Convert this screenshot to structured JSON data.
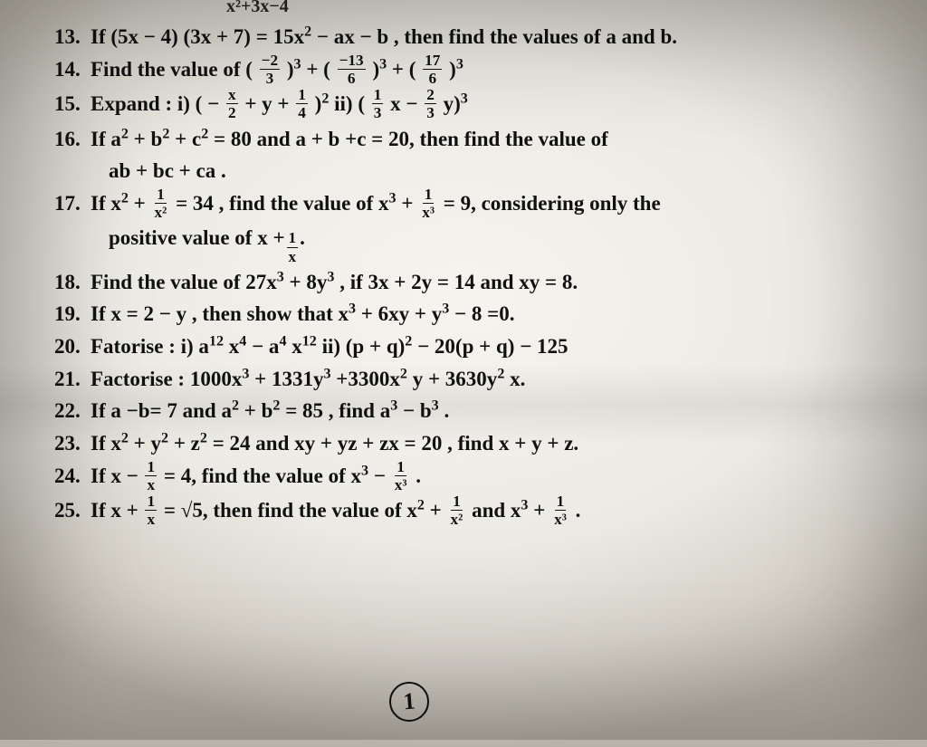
{
  "page": {
    "topfrag": "x²+3x−4",
    "footer_circled": "1"
  },
  "q13": {
    "num": "13.",
    "text_a": "If (5x − 4) (3x + 7) = 15x",
    "sup1": "2",
    "text_b": " − ax − b , then find the values of a and b."
  },
  "q14": {
    "num": "14.",
    "text_a": "Find the value of (",
    "f1t": "−2",
    "f1b": "3",
    "text_b": ")",
    "sup1": "3",
    "text_c": " + (",
    "f2t": "−13",
    "f2b": "6",
    "text_d": ")",
    "sup2": "3",
    "text_e": " + (",
    "f3t": "17",
    "f3b": "6",
    "text_f": ")",
    "sup3": "3"
  },
  "q15": {
    "num": "15.",
    "text_a": " Expand : i) ( −",
    "f1t": "x",
    "f1b": "2",
    "text_b": " + y + ",
    "f2t": "1",
    "f2b": "4",
    "text_c": " )",
    "sup1": "2",
    "text_d": "  ii)  ( ",
    "f3t": "1",
    "f3b": "3",
    "text_e": "x − ",
    "f4t": "2",
    "f4b": "3",
    "text_f": "y)",
    "sup2": "3"
  },
  "q16": {
    "num": "16.",
    "text_a": " If a",
    "sup1": "2",
    "text_b": "+ b",
    "sup2": "2",
    "text_c": " + c",
    "sup3": "2",
    "text_d": " = 80 and a + b +c = 20, then find the value of",
    "line2": "ab + bc + ca ."
  },
  "q17": {
    "num": "17.",
    "text_a": "If x",
    "sup1": "2",
    "text_b": " + ",
    "f1t": "1",
    "f1b": "x²",
    "text_c": " = 34 , find the value of  x",
    "sup2": "3",
    "text_d": " + ",
    "f2t": "1",
    "f2b": "x³",
    "text_e": " = 9, considering only the",
    "line2a": "positive value of x + ",
    "f3t": "1",
    "f3b": "x",
    "line2b": " ."
  },
  "q18": {
    "num": "18.",
    "text_a": "Find the value of 27x",
    "sup1": "3",
    "text_b": " + 8y",
    "sup2": "3",
    "text_c": " , if 3x + 2y = 14 and xy = 8."
  },
  "q19": {
    "num": "19.",
    "text_a": "If x = 2 − y , then show that x",
    "sup1": "3",
    "text_b": " + 6xy + y",
    "sup2": "3",
    "text_c": " − 8 =0."
  },
  "q20": {
    "num": "20.",
    "text_a": "Fatorise : i)  a",
    "sup1": "12",
    "text_b": "x",
    "sup2": "4",
    "text_c": " − a",
    "sup3": "4",
    "text_d": "x",
    "sup4": "12",
    "text_e": "  ii)  (p + q)",
    "sup5": "2",
    "text_f": " − 20(p + q) − 125"
  },
  "q21": {
    "num": "21.",
    "text_a": "Factorise : 1000x",
    "sup1": "3",
    "text_b": " + 1331y",
    "sup2": "3",
    "text_c": " +3300x",
    "sup3": "2",
    "text_d": "y + 3630y",
    "sup4": "2",
    "text_e": "x."
  },
  "q22": {
    "num": "22.",
    "text_a": "If a −b= 7 and a",
    "sup1": "2",
    "text_b": " + b",
    "sup2": "2",
    "text_c": " = 85 , find a",
    "sup3": "3",
    "text_d": " − b",
    "sup4": "3",
    "text_e": "."
  },
  "q23": {
    "num": "23.",
    "text_a": "If x",
    "sup1": "2",
    "text_b": " + y",
    "sup2": "2",
    "text_c": " + z",
    "sup3": "2",
    "text_d": " = 24 and xy + yz + zx = 20 , find x + y + z."
  },
  "q24": {
    "num": "24.",
    "text_a": " If x − ",
    "f1t": "1",
    "f1b": "x",
    "text_b": " = 4, find the value of  x",
    "sup1": "3",
    "text_c": " − ",
    "f2t": "1",
    "f2b": "x³",
    "text_d": " ."
  },
  "q25": {
    "num": "25.",
    "text_a": " If x + ",
    "f1t": "1",
    "f1b": "x",
    "text_b": " = √5, then find the value of x",
    "sup1": "2",
    "text_c": " + ",
    "f2t": "1",
    "f2b": "x²",
    "text_d": " and x",
    "sup2": "3",
    "text_e": " + ",
    "f3t": "1",
    "f3b": "x³",
    "text_f": "."
  }
}
